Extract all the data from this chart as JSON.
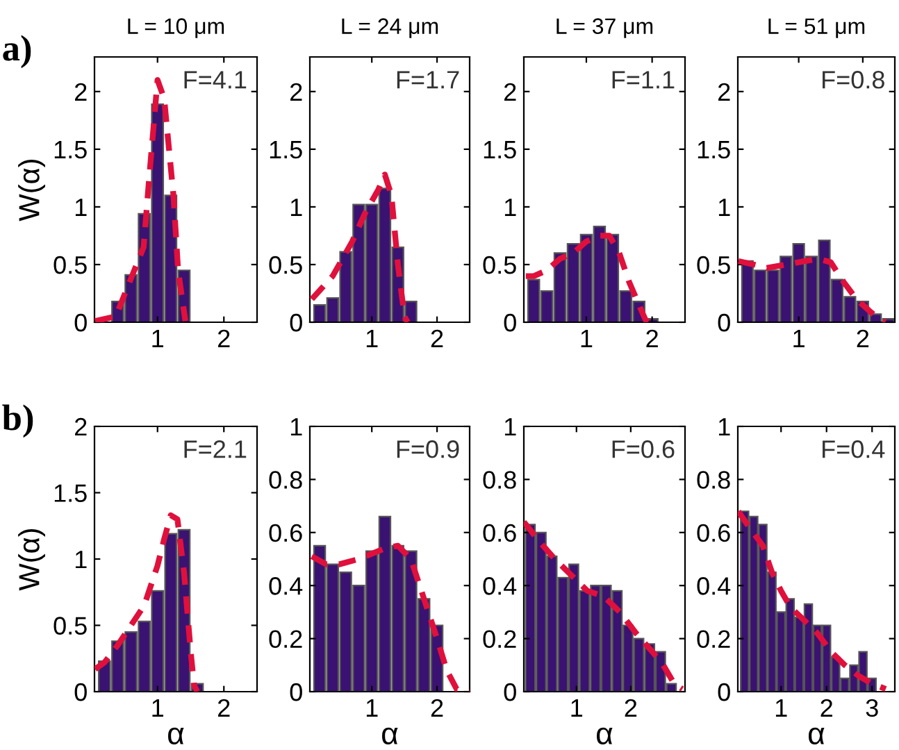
{
  "chart_data": [
    {
      "type": "histogram",
      "title": "L = 10 μm",
      "ylabel": "W(α)",
      "annotations": [
        "a)",
        "F=4.1"
      ],
      "xlim": [
        0.05,
        2.5
      ],
      "ylim": [
        0,
        2.3
      ],
      "xticks": [
        1,
        2
      ],
      "yticks": [
        0,
        0.5,
        1,
        1.5,
        2
      ],
      "grid": false,
      "series": [
        {
          "type": "histogram",
          "color": "#3a1272",
          "bins": [
            0.3,
            0.5,
            0.7,
            0.9,
            1.1,
            1.3,
            1.5
          ],
          "values": [
            0.18,
            0.41,
            0.94,
            1.89,
            1.1,
            0.45
          ]
        },
        {
          "type": "line",
          "color": "#e0103c",
          "line_style": "dashed",
          "x": [
            0.06,
            0.37,
            0.65,
            0.79,
            0.87,
            1.0,
            1.1,
            1.24,
            1.31,
            1.42
          ],
          "values": [
            0.01,
            0.05,
            0.45,
            0.65,
            1.22,
            2.1,
            1.94,
            1.1,
            0.45,
            0.01
          ]
        }
      ]
    },
    {
      "type": "histogram",
      "title": "L = 24 μm",
      "annotations": [
        "F=1.7"
      ],
      "xlim": [
        0.05,
        2.5
      ],
      "ylim": [
        0,
        2.3
      ],
      "xticks": [
        1,
        2
      ],
      "yticks": [
        0,
        0.5,
        1,
        1.5,
        2
      ],
      "grid": false,
      "series": [
        {
          "type": "histogram",
          "color": "#3a1272",
          "bins": [
            0.1,
            0.3,
            0.5,
            0.7,
            0.9,
            1.1,
            1.3,
            1.5,
            1.7
          ],
          "values": [
            0.15,
            0.21,
            0.61,
            1.02,
            1.02,
            1.16,
            0.65,
            0.18
          ]
        },
        {
          "type": "line",
          "color": "#e0103c",
          "line_style": "dashed",
          "x": [
            0.08,
            0.4,
            0.7,
            0.9,
            1.1,
            1.2,
            1.3,
            1.4,
            1.5,
            1.55
          ],
          "values": [
            0.2,
            0.4,
            0.7,
            0.95,
            1.15,
            1.28,
            1.1,
            0.5,
            0.05,
            0
          ]
        }
      ]
    },
    {
      "type": "histogram",
      "title": "L = 37 μm",
      "annotations": [
        "F=1.1"
      ],
      "xlim": [
        0.05,
        2.5
      ],
      "ylim": [
        0,
        2.3
      ],
      "xticks": [
        1,
        2
      ],
      "yticks": [
        0,
        0.5,
        1,
        1.5,
        2
      ],
      "grid": false,
      "series": [
        {
          "type": "histogram",
          "color": "#3a1272",
          "bins": [
            0.1,
            0.3,
            0.5,
            0.7,
            0.9,
            1.1,
            1.3,
            1.5,
            1.7,
            1.9,
            2.1
          ],
          "values": [
            0.37,
            0.27,
            0.6,
            0.68,
            0.76,
            0.83,
            0.76,
            0.27,
            0.18,
            0.03
          ]
        },
        {
          "type": "line",
          "color": "#e0103c",
          "line_style": "dashed",
          "x": [
            0.08,
            0.2,
            0.4,
            0.6,
            0.8,
            1.0,
            1.2,
            1.35,
            1.5,
            1.65,
            1.8,
            1.9,
            1.95
          ],
          "values": [
            0.4,
            0.4,
            0.45,
            0.55,
            0.6,
            0.7,
            0.75,
            0.75,
            0.6,
            0.35,
            0.15,
            0.02,
            0
          ]
        }
      ]
    },
    {
      "type": "histogram",
      "title": "L = 51 μm",
      "annotations": [
        "F=0.8"
      ],
      "xlim": [
        0.05,
        2.5
      ],
      "ylim": [
        0,
        2.3
      ],
      "xticks": [
        1,
        2
      ],
      "yticks": [
        0,
        0.5,
        1,
        1.5,
        2
      ],
      "grid": false,
      "series": [
        {
          "type": "histogram",
          "color": "#3a1272",
          "bins": [
            0.1,
            0.3,
            0.5,
            0.7,
            0.9,
            1.1,
            1.3,
            1.5,
            1.7,
            1.9,
            2.1,
            2.3,
            2.5
          ],
          "values": [
            0.53,
            0.45,
            0.45,
            0.57,
            0.68,
            0.57,
            0.71,
            0.37,
            0.22,
            0.18,
            0.07,
            0.03
          ]
        },
        {
          "type": "line",
          "color": "#e0103c",
          "line_style": "dashed",
          "x": [
            0.06,
            0.3,
            0.5,
            0.8,
            1.0,
            1.3,
            1.5,
            1.7,
            1.9,
            2.1,
            2.25,
            2.35
          ],
          "values": [
            0.53,
            0.5,
            0.47,
            0.5,
            0.52,
            0.55,
            0.52,
            0.35,
            0.2,
            0.1,
            0.03,
            0
          ]
        }
      ]
    },
    {
      "type": "histogram",
      "ylabel": "W(α)",
      "xlabel": "α",
      "annotations": [
        "b)",
        "F=2.1"
      ],
      "xlim": [
        0.05,
        2.5
      ],
      "ylim": [
        0,
        2
      ],
      "xticks": [
        1,
        2
      ],
      "yticks": [
        0,
        0.5,
        1,
        1.5,
        2
      ],
      "grid": false,
      "series": [
        {
          "type": "histogram",
          "color": "#3a1272",
          "bins": [
            0.1,
            0.3,
            0.5,
            0.7,
            0.9,
            1.1,
            1.3,
            1.5,
            1.7
          ],
          "values": [
            0.23,
            0.38,
            0.45,
            0.53,
            0.76,
            1.19,
            1.22,
            0.06
          ]
        },
        {
          "type": "line",
          "color": "#e0103c",
          "line_style": "dashed",
          "x": [
            0.06,
            0.2,
            0.4,
            0.6,
            0.8,
            1.0,
            1.1,
            1.2,
            1.3,
            1.4,
            1.5,
            1.55,
            1.6
          ],
          "values": [
            0.17,
            0.22,
            0.35,
            0.5,
            0.65,
            0.95,
            1.15,
            1.33,
            1.3,
            0.9,
            0.3,
            0.05,
            0
          ]
        }
      ]
    },
    {
      "type": "histogram",
      "xlabel": "α",
      "annotations": [
        "F=0.9"
      ],
      "xlim": [
        0.05,
        2.5
      ],
      "ylim": [
        0,
        1
      ],
      "xticks": [
        1,
        2
      ],
      "yticks": [
        0,
        0.2,
        0.4,
        0.6,
        0.8,
        1
      ],
      "grid": false,
      "series": [
        {
          "type": "histogram",
          "color": "#3a1272",
          "bins": [
            0.1,
            0.3,
            0.5,
            0.7,
            0.9,
            1.1,
            1.3,
            1.5,
            1.7,
            1.9,
            2.1
          ],
          "values": [
            0.55,
            0.48,
            0.45,
            0.4,
            0.53,
            0.66,
            0.55,
            0.53,
            0.35,
            0.25
          ]
        },
        {
          "type": "line",
          "color": "#e0103c",
          "line_style": "dashed",
          "x": [
            0.08,
            0.3,
            0.5,
            0.8,
            1.0,
            1.2,
            1.4,
            1.6,
            1.8,
            2.0,
            2.15,
            2.3,
            2.5
          ],
          "values": [
            0.51,
            0.48,
            0.48,
            0.5,
            0.52,
            0.54,
            0.55,
            0.5,
            0.35,
            0.2,
            0.08,
            0.01,
            0
          ]
        }
      ]
    },
    {
      "type": "histogram",
      "xlabel": "α",
      "annotations": [
        "F=0.6"
      ],
      "xlim": [
        0.03,
        3.0
      ],
      "ylim": [
        0,
        1
      ],
      "xticks": [
        1,
        2
      ],
      "yticks": [
        0,
        0.2,
        0.4,
        0.6,
        0.8,
        1
      ],
      "grid": false,
      "series": [
        {
          "type": "histogram",
          "color": "#3a1272",
          "bins": [
            0.05,
            0.25,
            0.45,
            0.65,
            0.85,
            1.05,
            1.25,
            1.45,
            1.65,
            1.85,
            2.05,
            2.25,
            2.45,
            2.65,
            2.85
          ],
          "values": [
            0.63,
            0.6,
            0.51,
            0.43,
            0.48,
            0.38,
            0.4,
            0.4,
            0.38,
            0.25,
            0.2,
            0.18,
            0.15,
            0.03
          ]
        },
        {
          "type": "line",
          "color": "#e0103c",
          "line_style": "dashed",
          "x": [
            0.03,
            0.3,
            0.6,
            0.9,
            1.2,
            1.5,
            1.8,
            2.1,
            2.4,
            2.6,
            2.8,
            2.95
          ],
          "values": [
            0.64,
            0.57,
            0.5,
            0.44,
            0.38,
            0.36,
            0.3,
            0.22,
            0.15,
            0.1,
            0.03,
            0.01
          ]
        }
      ]
    },
    {
      "type": "histogram",
      "xlabel": "α",
      "annotations": [
        "F=0.4"
      ],
      "xlim": [
        0.05,
        3.5
      ],
      "ylim": [
        0,
        1
      ],
      "xticks": [
        1,
        2,
        3
      ],
      "yticks": [
        0,
        0.2,
        0.4,
        0.6,
        0.8,
        1
      ],
      "grid": false,
      "series": [
        {
          "type": "histogram",
          "color": "#3a1272",
          "bins": [
            0.1,
            0.3,
            0.5,
            0.7,
            0.9,
            1.1,
            1.3,
            1.5,
            1.7,
            1.9,
            2.1,
            2.3,
            2.5,
            2.7,
            2.9,
            3.1
          ],
          "values": [
            0.68,
            0.66,
            0.63,
            0.45,
            0.3,
            0.35,
            0.28,
            0.33,
            0.25,
            0.25,
            0.13,
            0.05,
            0.1,
            0.15,
            0.05
          ]
        },
        {
          "type": "line",
          "color": "#e0103c",
          "line_style": "dashed",
          "x": [
            0.06,
            0.3,
            0.6,
            0.8,
            1.0,
            1.2,
            1.5,
            1.8,
            2.1,
            2.4,
            2.7,
            3.0,
            3.3
          ],
          "values": [
            0.68,
            0.62,
            0.55,
            0.45,
            0.38,
            0.32,
            0.27,
            0.22,
            0.15,
            0.1,
            0.06,
            0.03,
            0.01
          ]
        }
      ]
    }
  ]
}
